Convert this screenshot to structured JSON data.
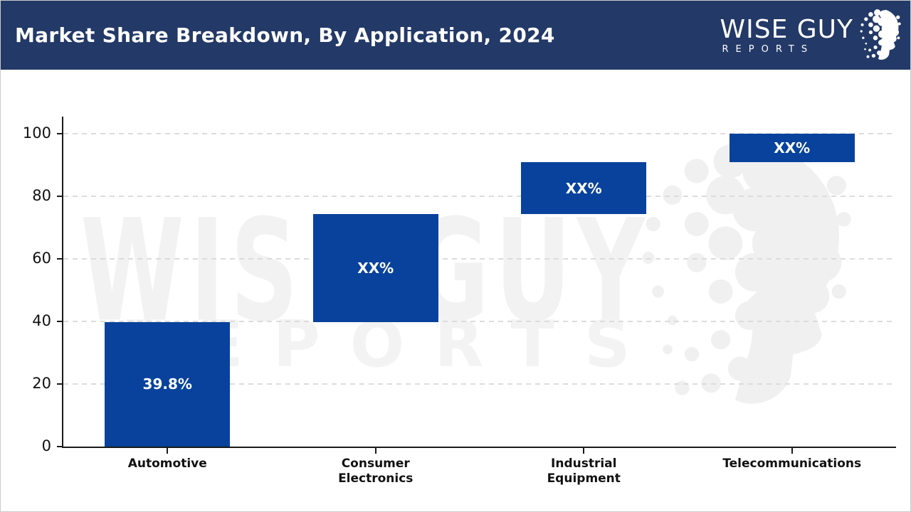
{
  "header": {
    "title": "Market Share Breakdown, By Application, 2024",
    "logo": {
      "line1": "WISE GUY",
      "line2": "REPORTS"
    }
  },
  "watermark": {
    "line1": "WISE GUY",
    "line2": "REPORTS"
  },
  "chart_data": {
    "type": "bar",
    "variant": "waterfall",
    "title": "Market Share Breakdown, By Application, 2024",
    "categories": [
      "Automotive",
      "Consumer\nElectronics",
      "Industrial\nEquipment",
      "Telecommunications"
    ],
    "segments": [
      {
        "category": "Automotive",
        "start": 0,
        "end": 39.8,
        "label": "39.8%"
      },
      {
        "category": "Consumer Electronics",
        "start": 39.8,
        "end": 74.3,
        "label": "XX%"
      },
      {
        "category": "Industrial Equipment",
        "start": 74.3,
        "end": 90.9,
        "label": "XX%"
      },
      {
        "category": "Telecommunications",
        "start": 90.9,
        "end": 100,
        "label": "XX%"
      }
    ],
    "yticks": [
      0,
      20,
      40,
      60,
      80,
      100
    ],
    "ylim": [
      0,
      105
    ],
    "xlabel": "",
    "ylabel": "",
    "grid": "horizontal-dashed",
    "legend": "none",
    "colors": {
      "bar": "#08429c",
      "header_bg": "#233967",
      "grid": "#dcdcdc",
      "axis": "#1a1a1a",
      "tick_label": "#111111",
      "category_label": "#111111",
      "value_label": "#ffffff",
      "watermark": "#f2f2f2"
    }
  }
}
